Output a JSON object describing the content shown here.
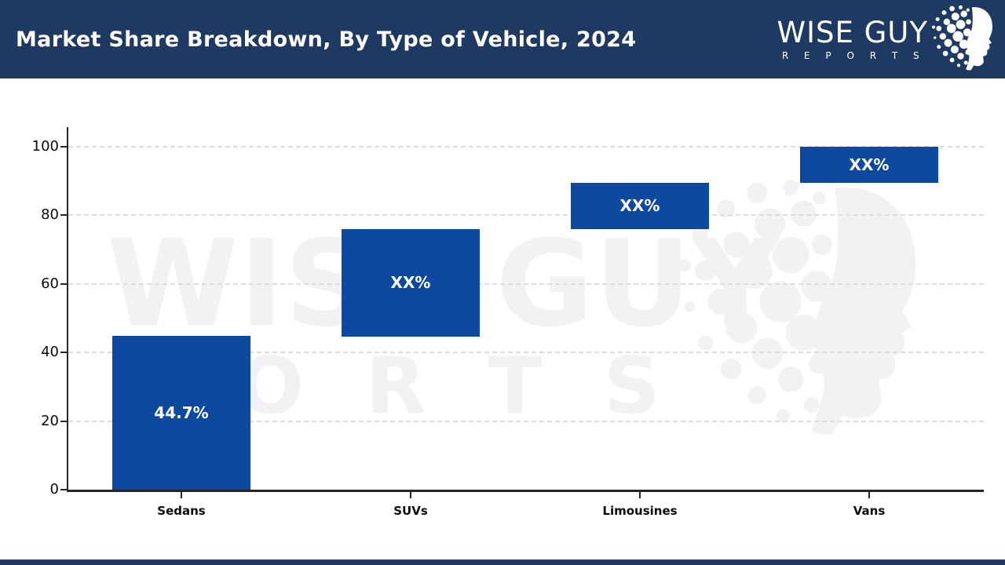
{
  "header": {
    "title": "Market Share Breakdown, By Type of Vehicle, 2024",
    "logo": {
      "line1": "WISE GUY",
      "line2": "R E P O R T S"
    }
  },
  "watermark": {
    "line1": "WISE GUY",
    "line2": "P O R T S"
  },
  "colors": {
    "header_bg": "#1e3a63",
    "bar": "#0d4a9f",
    "grid": "#dcdcdc",
    "axis": "#262626",
    "bar_label": "#ffffff",
    "watermark": "#f2f2f4"
  },
  "chart_data": {
    "type": "bar",
    "subtype": "waterfall",
    "title": "Market Share Breakdown, By Type of Vehicle, 2024",
    "categories": [
      "Sedans",
      "SUVs",
      "Limousines",
      "Vans"
    ],
    "segments": [
      {
        "category": "Sedans",
        "start": 0,
        "end": 44.7,
        "label": "44.7%"
      },
      {
        "category": "SUVs",
        "start": 44.5,
        "end": 76.0,
        "label": "XX%"
      },
      {
        "category": "Limousines",
        "start": 76.0,
        "end": 89.3,
        "label": "XX%"
      },
      {
        "category": "Vans",
        "start": 89.3,
        "end": 99.8,
        "label": "XX%"
      }
    ],
    "xlabel": "",
    "ylabel": "",
    "ylim": [
      0,
      105
    ],
    "yticks": [
      0,
      20,
      40,
      60,
      80,
      100
    ],
    "grid": "horizontal-dashed",
    "legend": "none"
  }
}
